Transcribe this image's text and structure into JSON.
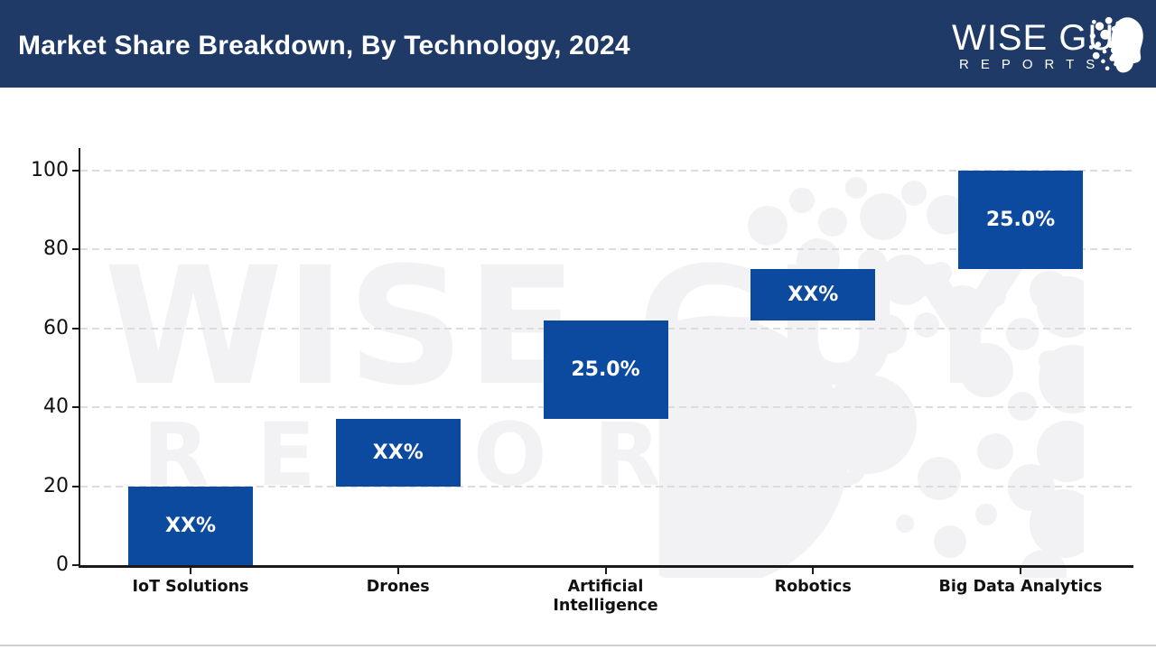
{
  "header": {
    "title": "Market Share Breakdown, By Technology, 2024",
    "logo": {
      "line1": "WISE GUY",
      "line2": "REPORTS"
    }
  },
  "watermark": {
    "line1": "WISE GUY",
    "line2": "REPORTS"
  },
  "chart_data": {
    "type": "bar",
    "subtype": "floating-breakdown-waterfall",
    "title": "Market Share Breakdown, By Technology, 2024",
    "categories": [
      "IoT Solutions",
      "Drones",
      "Artificial\nIntelligence",
      "Robotics",
      "Big Data Analytics"
    ],
    "bars": [
      {
        "category": "IoT Solutions",
        "start": 0,
        "end": 20,
        "label": "XX%"
      },
      {
        "category": "Drones",
        "start": 20,
        "end": 37,
        "label": "XX%"
      },
      {
        "category": "Artificial Intelligence",
        "start": 37,
        "end": 62,
        "label": "25.0%"
      },
      {
        "category": "Robotics",
        "start": 62,
        "end": 75,
        "label": "XX%"
      },
      {
        "category": "Big Data Analytics",
        "start": 75,
        "end": 100,
        "label": "25.0%"
      }
    ],
    "xlabel": "",
    "ylabel": "",
    "ylim": [
      0,
      106
    ],
    "yticks": [
      0,
      20,
      40,
      60,
      80,
      100
    ],
    "grid": "horizontal-dashed",
    "legend": "none",
    "colors": {
      "bar": "#0c4aa0",
      "bar_label": "#ffffff",
      "header_background": "#1f3a67",
      "axis": "#1a1a1a",
      "gridline": "#dcdcdc",
      "watermark": "#f2f2f5"
    }
  }
}
